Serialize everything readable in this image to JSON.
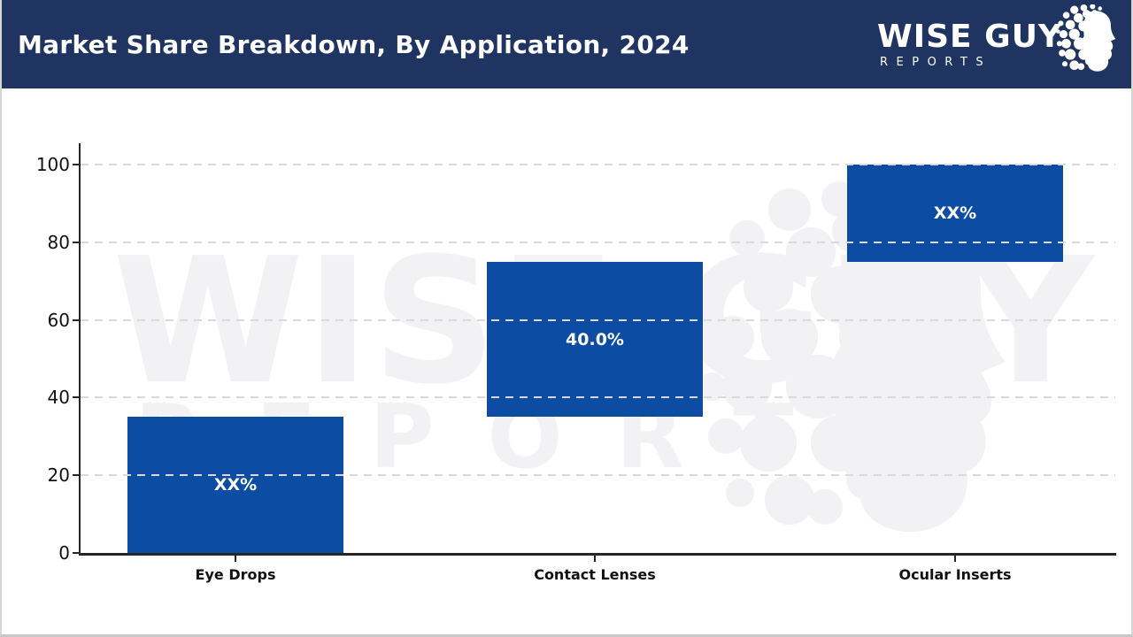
{
  "header": {
    "title": "Market Share Breakdown, By Application, 2024",
    "bg_color": "#1f3460",
    "logo": {
      "line1": "WISE GUY",
      "line2": "REPORTS"
    }
  },
  "watermark": {
    "line1": "WISE GUY",
    "line2": "REPORTS"
  },
  "chart_data": {
    "type": "bar",
    "variant": "waterfall",
    "title": "Market Share Breakdown, By Application, 2024",
    "categories": [
      "Eye Drops",
      "Contact Lenses",
      "Ocular Inserts"
    ],
    "segments": [
      {
        "category": "Eye Drops",
        "start": 0,
        "end": 35,
        "label": "XX%"
      },
      {
        "category": "Contact Lenses",
        "start": 35,
        "end": 75,
        "label": "40.0%"
      },
      {
        "category": "Ocular Inserts",
        "start": 75,
        "end": 100,
        "label": "XX%"
      }
    ],
    "y_ticks": [
      0,
      20,
      40,
      60,
      80,
      100
    ],
    "ylim": [
      0,
      100
    ],
    "grid": "horizontal-dashed",
    "legend": "none",
    "bar_color": "#0c4da3",
    "bar_label_color": "#ffffff",
    "axis_color": "#262626",
    "gridline_color": "#d9d9d9"
  }
}
